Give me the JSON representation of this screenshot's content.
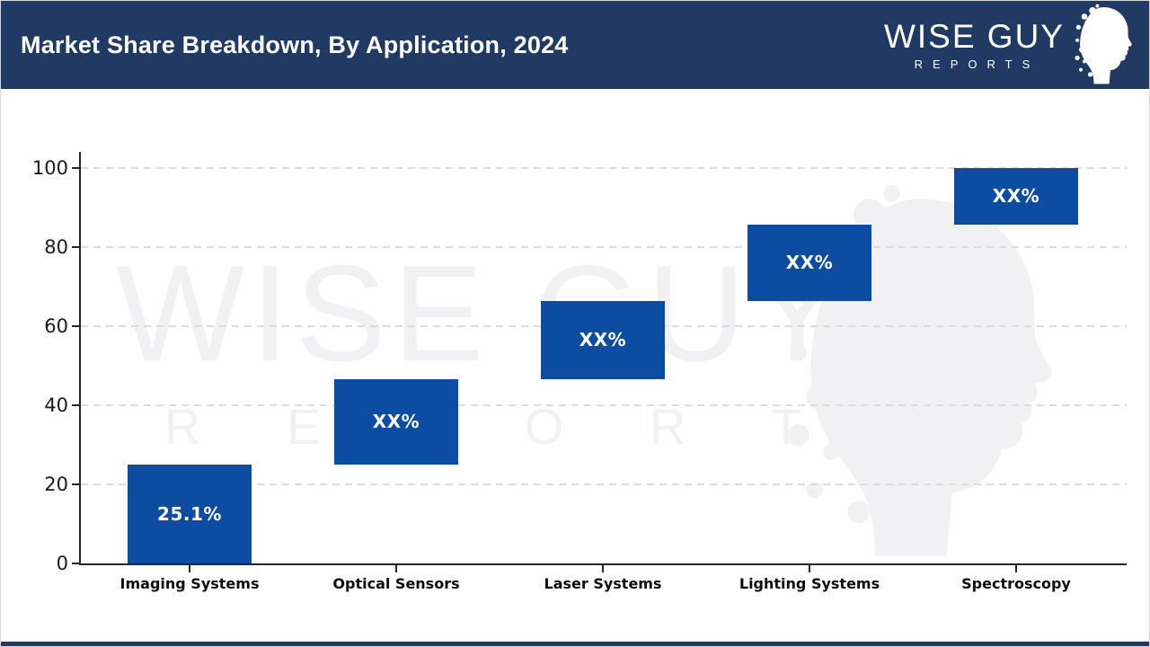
{
  "header": {
    "title": "Market Share Breakdown, By Application, 2024",
    "logo_line1": "WISE GUY",
    "logo_line2": "REPORTS"
  },
  "watermark": {
    "line1": "WISE GUY",
    "line2": "R E P O R T S"
  },
  "icons": {
    "logo_face": "dotted-head-profile-icon",
    "watermark_face": "dotted-head-profile-icon"
  },
  "colors": {
    "header_bg": "#213a63",
    "footer_bg": "#213a63",
    "bar_fill": "#0c4da2",
    "bar_label": "#ffffff",
    "gridline": "#dcdcdc",
    "axis": "#262626",
    "watermark": "#f1f1f3",
    "title_text": "#ffffff"
  },
  "chart_data": {
    "type": "bar",
    "subtype": "waterfall",
    "title": "Market Share Breakdown, By Application, 2024",
    "xlabel": "",
    "ylabel": "",
    "categories": [
      "Imaging Systems",
      "Optical Sensors",
      "Laser Systems",
      "Lighting Systems",
      "Spectroscopy"
    ],
    "segments": [
      {
        "category": "Imaging Systems",
        "start": 0,
        "end": 25.1,
        "size": 25.1,
        "label": "25.1%"
      },
      {
        "category": "Optical Sensors",
        "start": 25.1,
        "end": 46.6,
        "size": 21.5,
        "label": "XX%"
      },
      {
        "category": "Laser Systems",
        "start": 46.6,
        "end": 66.4,
        "size": 19.8,
        "label": "XX%"
      },
      {
        "category": "Lighting Systems",
        "start": 66.4,
        "end": 85.7,
        "size": 19.3,
        "label": "XX%"
      },
      {
        "category": "Spectroscopy",
        "start": 85.7,
        "end": 100.0,
        "size": 14.3,
        "label": "XX%"
      }
    ],
    "ylim": [
      0,
      100
    ],
    "yticks": [
      0,
      20,
      40,
      60,
      80,
      100
    ],
    "grid": "horizontal dashed",
    "legend": "none"
  }
}
